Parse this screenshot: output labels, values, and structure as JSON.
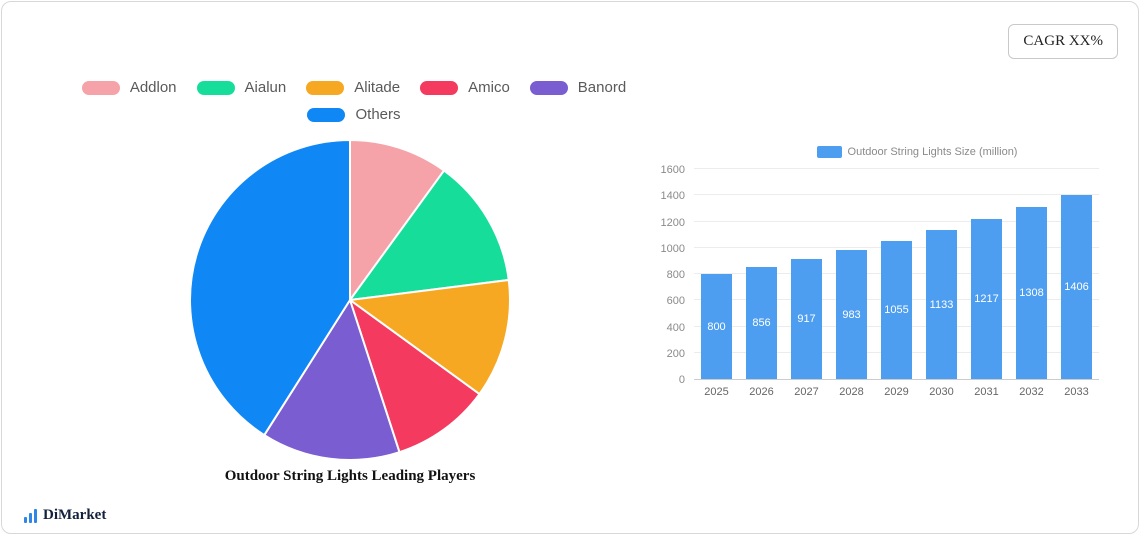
{
  "header": {
    "cagr_label": "CAGR XX%"
  },
  "branding": {
    "logo_text": "DiMarket"
  },
  "chart_data": [
    {
      "type": "pie",
      "title": "Outdoor String Lights Leading Players",
      "labels": [
        "Addlon",
        "Aialun",
        "Alitade",
        "Amico",
        "Banord",
        "Others"
      ],
      "values": [
        10,
        13,
        12,
        10,
        14,
        41
      ],
      "colors": [
        "#f5a3a8",
        "#17dd9b",
        "#f7a823",
        "#f43a5e",
        "#7a5dd0",
        "#0f87f5"
      ],
      "legend_position": "top",
      "legend_rows": [
        5,
        1
      ]
    },
    {
      "type": "bar",
      "legend": "Outdoor String Lights Size (million)",
      "categories": [
        "2025",
        "2026",
        "2027",
        "2028",
        "2029",
        "2030",
        "2031",
        "2032",
        "2033"
      ],
      "values": [
        800,
        856,
        917,
        983,
        1055,
        1133,
        1217,
        1308,
        1406
      ],
      "ylim": [
        0,
        1600
      ],
      "ytick_step": 200,
      "bar_color": "#4d9ef0",
      "grid": true,
      "value_labels": "inside-white"
    }
  ]
}
